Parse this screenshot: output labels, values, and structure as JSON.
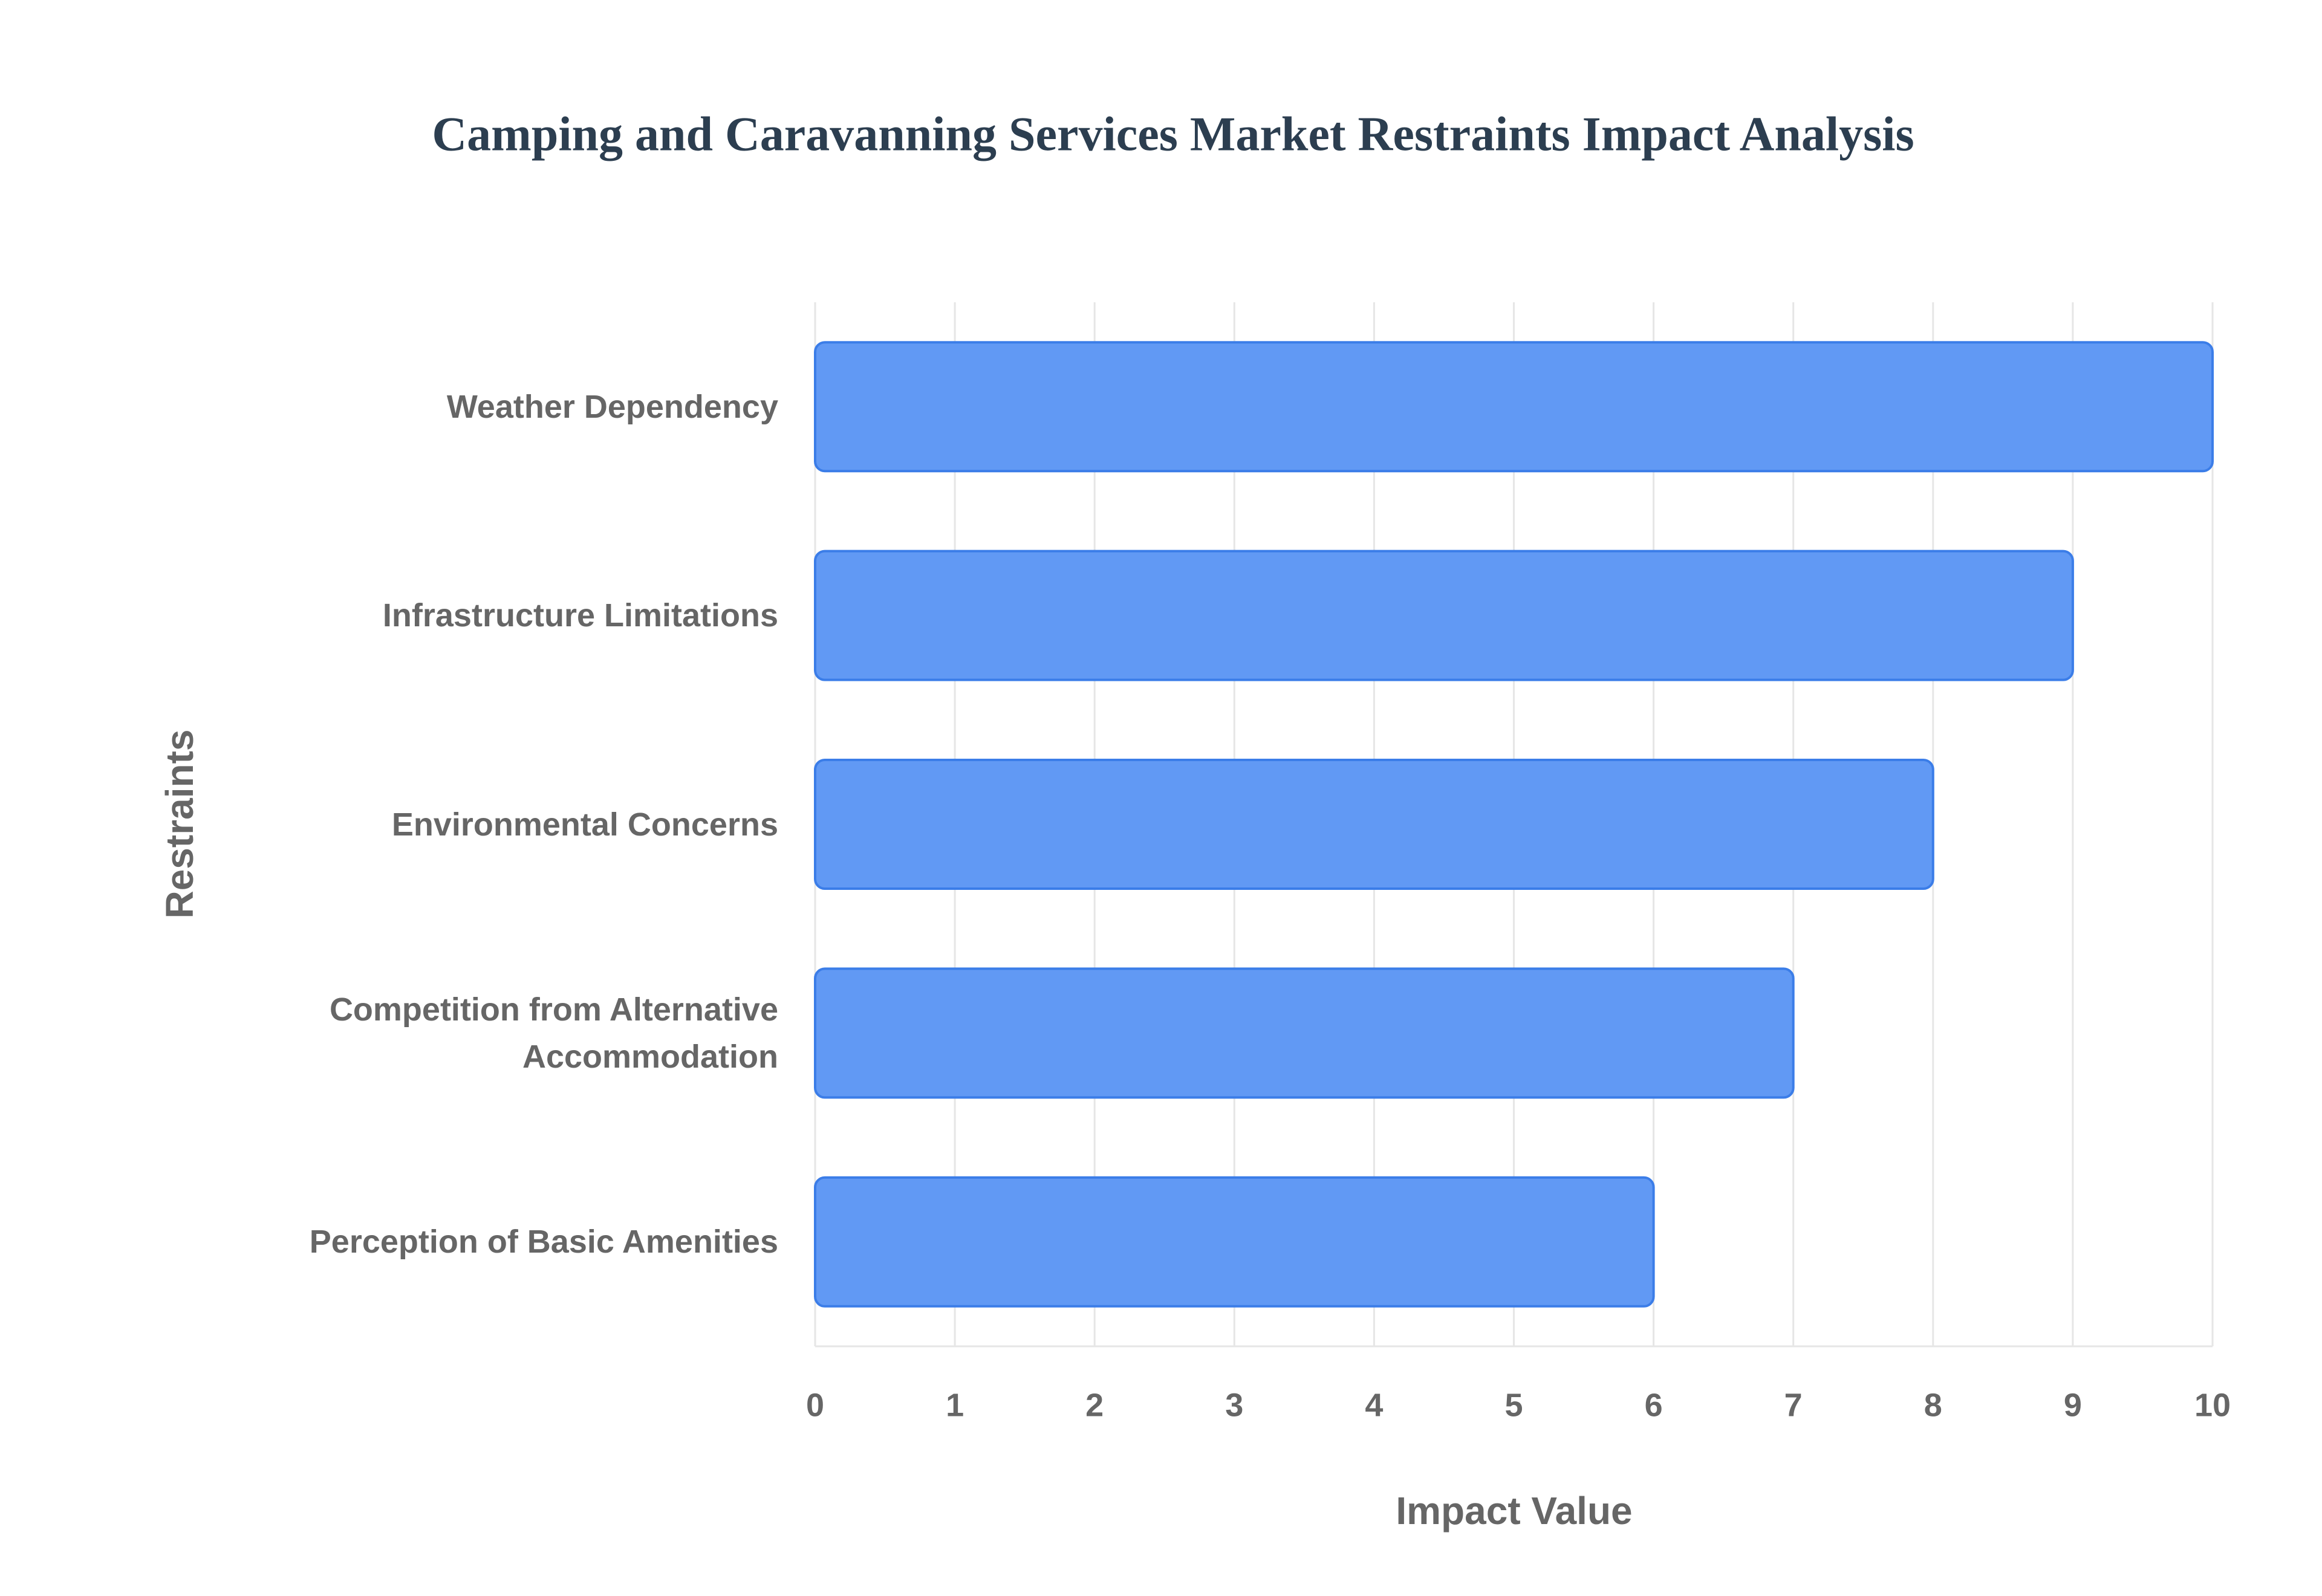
{
  "chart_data": {
    "type": "bar",
    "orientation": "horizontal",
    "title": "Camping and Caravanning Services Market Restraints Impact Analysis",
    "x_label": "Impact Value",
    "y_label": "Restraints",
    "categories": [
      "Weather Dependency",
      "Infrastructure Limitations",
      "Environmental Concerns",
      "Competition from Alternative Accommodation",
      "Perception of Basic Amenities"
    ],
    "values": [
      10,
      9,
      8,
      7,
      6
    ],
    "color": "#6199f4",
    "edge_color": "#3b7de8",
    "xlim": [
      0,
      10
    ],
    "xticks": [
      0,
      1,
      2,
      3,
      4,
      5,
      6,
      7,
      8,
      9,
      10
    ],
    "grid": true
  }
}
